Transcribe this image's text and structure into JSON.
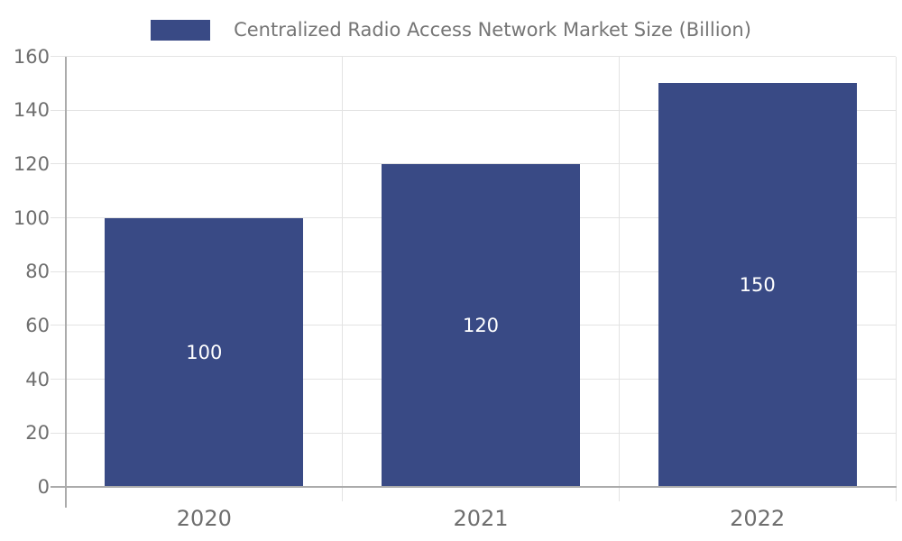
{
  "chart_data": {
    "type": "bar",
    "title": "Centralized Radio Access Network Market Size (Billion)",
    "legend": {
      "position": "top-center",
      "entries": [
        {
          "label": "Centralized Radio Access Network Market Size (Billion)",
          "swatch_color": "#394A85"
        }
      ]
    },
    "categories": [
      "2020",
      "2021",
      "2022"
    ],
    "series": [
      {
        "name": "Centralized Radio Access Network Market Size (Billion)",
        "values": [
          100,
          120,
          150
        ]
      }
    ],
    "bar_value_labels": [
      "100",
      "120",
      "150"
    ],
    "xlabel": "",
    "ylabel": "",
    "ylim": [
      0,
      160
    ],
    "yticks": [
      0,
      20,
      40,
      60,
      80,
      100,
      120,
      140,
      160
    ],
    "grid": true,
    "colors": {
      "bar": "#394A85",
      "gridline": "#E3E3E3",
      "axis": "#ABABAB",
      "tick_label": "#6E6E6E",
      "legend_text": "#757575",
      "value_label": "#FFFFFF",
      "background": "#FFFFFF"
    }
  }
}
